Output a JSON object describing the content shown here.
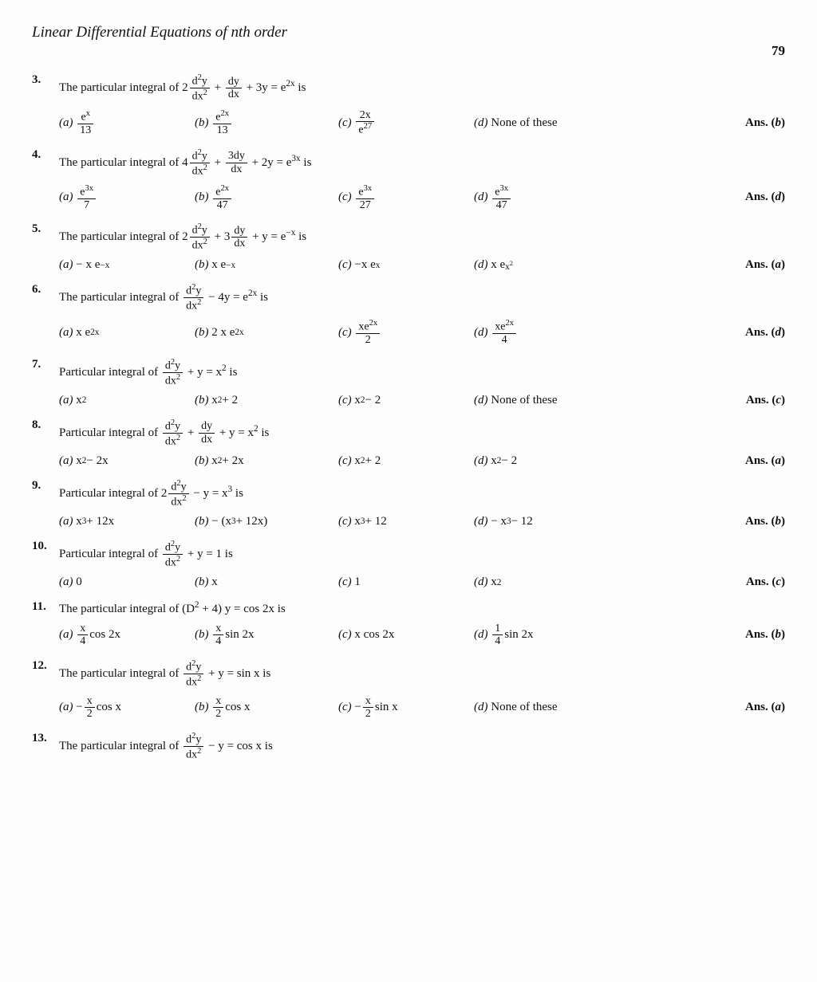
{
  "header": {
    "title_prefix": "Linear Differential Equations of ",
    "title_nth": "n",
    "title_suffix": "th order",
    "page_number": "79"
  },
  "questions": [
    {
      "num": "3.",
      "stem_prefix": "The particular integral of ",
      "stem_eq_html": "2<span class='frac'><span class='num'>d<sup>2</sup>y</span><span class='den'>dx<sup>2</sup></span></span> + <span class='frac'><span class='num'>dy</span><span class='den'>dx</span></span> + 3y = e<sup>2x</sup>",
      "stem_suffix": " is",
      "opts": [
        {
          "l": "(a)",
          "h": "<span class='frac'><span class='num'>e<sup>x</sup></span><span class='den'>13</span></span>"
        },
        {
          "l": "(b)",
          "h": "<span class='frac'><span class='num'>e<sup>2x</sup></span><span class='den'>13</span></span>"
        },
        {
          "l": "(c)",
          "h": "<span class='frac'><span class='num'>2x</span><span class='den'>e<sup>27</sup></span></span>"
        },
        {
          "l": "(d)",
          "h": "None of these"
        }
      ],
      "ans": "Ans. (b)"
    },
    {
      "num": "4.",
      "stem_prefix": "The particular integral of ",
      "stem_eq_html": "4<span class='frac'><span class='num'>d<sup>2</sup>y</span><span class='den'>dx<sup>2</sup></span></span> + <span class='frac'><span class='num'>3dy</span><span class='den'>dx</span></span> + 2y = e<sup>3x</sup>",
      "stem_suffix": " is",
      "opts": [
        {
          "l": "(a)",
          "h": "<span class='frac'><span class='num'>e<sup>3x</sup></span><span class='den'>7</span></span>"
        },
        {
          "l": "(b)",
          "h": "<span class='frac'><span class='num'>e<sup>2x</sup></span><span class='den'>47</span></span>"
        },
        {
          "l": "(c)",
          "h": "<span class='frac'><span class='num'>e<sup>3x</sup></span><span class='den'>27</span></span>"
        },
        {
          "l": "(d)",
          "h": "<span class='frac'><span class='num'>e<sup>3x</sup></span><span class='den'>47</span></span>"
        }
      ],
      "ans": "Ans. (d)"
    },
    {
      "num": "5.",
      "stem_prefix": "The particular integral of ",
      "stem_eq_html": "2<span class='frac'><span class='num'>d<sup>2</sup>y</span><span class='den'>dx<sup>2</sup></span></span> + 3<span class='frac'><span class='num'>dy</span><span class='den'>dx</span></span> + y = e<sup>−x</sup>",
      "stem_suffix": " is",
      "opts": [
        {
          "l": "(a)",
          "h": "− x e<sup>−x</sup>"
        },
        {
          "l": "(b)",
          "h": "x e<sup>−x</sup>"
        },
        {
          "l": "(c)",
          "h": "−x e<sup>x</sup>"
        },
        {
          "l": "(d)",
          "h": "x e<sup>x<sup>2</sup></sup>"
        }
      ],
      "ans": "Ans. (a)"
    },
    {
      "num": "6.",
      "stem_prefix": "The particular integral of ",
      "stem_eq_html": "<span class='frac'><span class='num'>d<sup>2</sup>y</span><span class='den'>dx<sup>2</sup></span></span> − 4y = e<sup>2x</sup>",
      "stem_suffix": " is",
      "opts": [
        {
          "l": "(a)",
          "h": "x e<sup>2x</sup>"
        },
        {
          "l": "(b)",
          "h": "2 x e<sup>2x</sup>"
        },
        {
          "l": "(c)",
          "h": "<span class='frac'><span class='num'>xe<sup>2x</sup></span><span class='den'>2</span></span>"
        },
        {
          "l": "(d)",
          "h": "<span class='frac'><span class='num'>xe<sup>2x</sup></span><span class='den'>4</span></span>"
        }
      ],
      "ans": "Ans. (d)"
    },
    {
      "num": "7.",
      "stem_prefix": "Particular integral of ",
      "stem_eq_html": "<span class='frac'><span class='num'>d<sup>2</sup>y</span><span class='den'>dx<sup>2</sup></span></span> + y = x<sup>2</sup>",
      "stem_suffix": " is",
      "opts": [
        {
          "l": "(a)",
          "h": "x<sup>2</sup>"
        },
        {
          "l": "(b)",
          "h": "x<sup>2</sup> + 2"
        },
        {
          "l": "(c)",
          "h": "x<sup>2</sup> − 2"
        },
        {
          "l": "(d)",
          "h": "None of these"
        }
      ],
      "ans": "Ans. (c)"
    },
    {
      "num": "8.",
      "stem_prefix": "Particular integral of ",
      "stem_eq_html": "<span class='frac'><span class='num'>d<sup>2</sup>y</span><span class='den'>dx<sup>2</sup></span></span> + <span class='frac'><span class='num'>dy</span><span class='den'>dx</span></span> + y = x<sup>2</sup>",
      "stem_suffix": " is",
      "opts": [
        {
          "l": "(a)",
          "h": "x<sup>2</sup> − 2x"
        },
        {
          "l": "(b)",
          "h": "x<sup>2</sup> + 2x"
        },
        {
          "l": "(c)",
          "h": "x<sup>2</sup> + 2"
        },
        {
          "l": "(d)",
          "h": "x<sup>2</sup> − 2"
        }
      ],
      "ans": "Ans. (a)"
    },
    {
      "num": "9.",
      "stem_prefix": "Particular integral of ",
      "stem_eq_html": "2<span class='frac'><span class='num'>d<sup>2</sup>y</span><span class='den'>dx<sup>2</sup></span></span> − y = x<sup>3</sup>",
      "stem_suffix": " is",
      "opts": [
        {
          "l": "(a)",
          "h": "x<sup>3</sup> + 12x"
        },
        {
          "l": "(b)",
          "h": "− (x<sup>3</sup> + 12x)"
        },
        {
          "l": "(c)",
          "h": "x<sup>3</sup> + 12"
        },
        {
          "l": "(d)",
          "h": "− x<sup>3</sup> − 12"
        }
      ],
      "ans": "Ans. (b)"
    },
    {
      "num": "10.",
      "stem_prefix": "Particular integral of ",
      "stem_eq_html": "<span class='frac'><span class='num'>d<sup>2</sup>y</span><span class='den'>dx<sup>2</sup></span></span> + y = 1",
      "stem_suffix": " is",
      "opts": [
        {
          "l": "(a)",
          "h": "0"
        },
        {
          "l": "(b)",
          "h": "x"
        },
        {
          "l": "(c)",
          "h": "1"
        },
        {
          "l": "(d)",
          "h": "x<sup>2</sup>"
        }
      ],
      "ans": "Ans. (c)"
    },
    {
      "num": "11.",
      "stem_prefix": "The particular integral of ",
      "stem_eq_html": "(D<sup>2</sup> + 4) y = cos 2x",
      "stem_suffix": " is",
      "opts": [
        {
          "l": "(a)",
          "h": "<span class='frac'><span class='num'>x</span><span class='den'>4</span></span> cos 2x"
        },
        {
          "l": "(b)",
          "h": "<span class='frac'><span class='num'>x</span><span class='den'>4</span></span> sin 2x"
        },
        {
          "l": "(c)",
          "h": "x cos 2x"
        },
        {
          "l": "(d)",
          "h": "<span class='frac'><span class='num'>1</span><span class='den'>4</span></span> sin 2x"
        }
      ],
      "ans": "Ans. (b)"
    },
    {
      "num": "12.",
      "stem_prefix": "The particular integral of ",
      "stem_eq_html": "<span class='frac'><span class='num'>d<sup>2</sup>y</span><span class='den'>dx<sup>2</sup></span></span> + y = sin x",
      "stem_suffix": " is",
      "opts": [
        {
          "l": "(a)",
          "h": "− <span class='frac'><span class='num'>x</span><span class='den'>2</span></span> cos x"
        },
        {
          "l": "(b)",
          "h": "<span class='frac'><span class='num'>x</span><span class='den'>2</span></span> cos x"
        },
        {
          "l": "(c)",
          "h": "− <span class='frac'><span class='num'>x</span><span class='den'>2</span></span> sin x"
        },
        {
          "l": "(d)",
          "h": "None of these"
        }
      ],
      "ans": "Ans. (a)"
    },
    {
      "num": "13.",
      "stem_prefix": "The particular integral of ",
      "stem_eq_html": "<span class='frac'><span class='num'>d<sup>2</sup>y</span><span class='den'>dx<sup>2</sup></span></span> − y = cos x",
      "stem_suffix": " is",
      "opts": [],
      "ans": ""
    }
  ]
}
